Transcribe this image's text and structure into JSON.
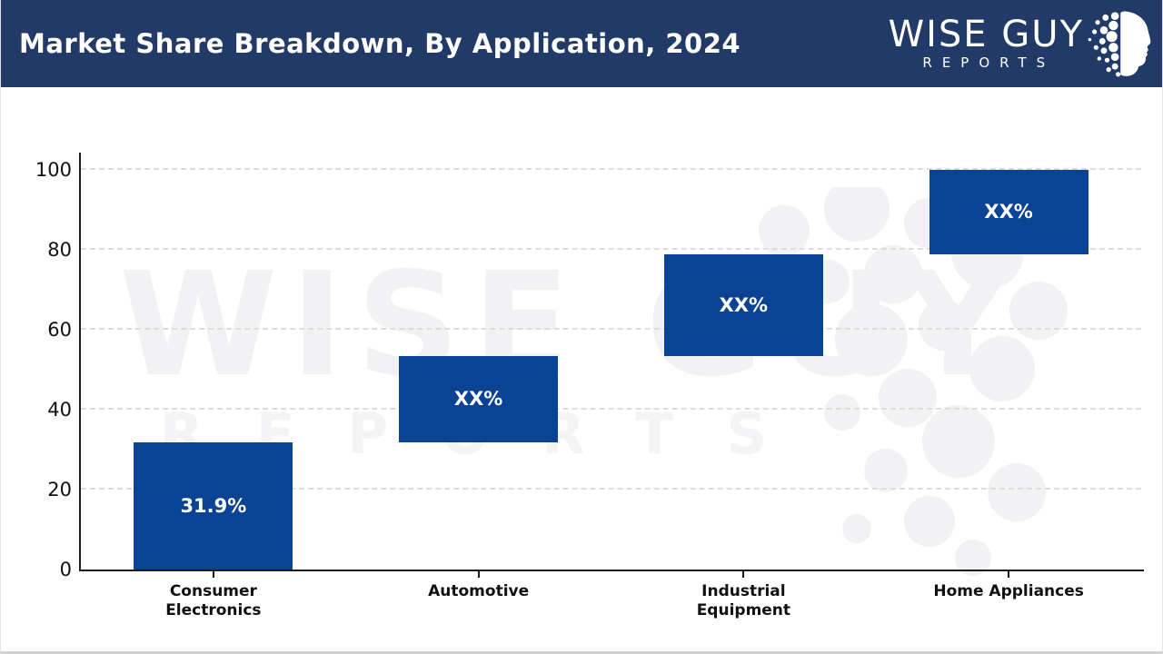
{
  "header": {
    "title": "Market Share Breakdown, By Application, 2024",
    "logo": {
      "line1": "WISE GUY",
      "line2": "REPORTS",
      "icon": "dotted-head-profile-icon"
    }
  },
  "watermark": {
    "line1": "WISE GUY",
    "line2": "REPORTS",
    "icon": "dotted-head-profile-watermark"
  },
  "colors": {
    "header_bg": "#223a67",
    "header_text": "#ffffff",
    "bar_fill": "#0a4294",
    "bar_label_text": "#ffffff",
    "gridline": "#dcdcdc",
    "axis": "#1a1a1a",
    "watermark": "#f2f2f4"
  },
  "chart_data": {
    "type": "bar",
    "subtype": "waterfall",
    "title": "Market Share Breakdown, By Application, 2024",
    "xlabel": "",
    "ylabel": "",
    "ylim": [
      0,
      100
    ],
    "yticks": [
      0,
      20,
      40,
      60,
      80,
      100
    ],
    "grid": "horizontal-dashed",
    "legend": "none",
    "bar_width_frac": 0.6,
    "categories": [
      "Consumer\nElectronics",
      "Automotive",
      "Industrial\nEquipment",
      "Home Appliances"
    ],
    "segments": [
      {
        "category": "Consumer Electronics",
        "start": 0,
        "end": 31.9,
        "value": 31.9,
        "label": "31.9%"
      },
      {
        "category": "Automotive",
        "start": 31.9,
        "end": 53.4,
        "value": 21.5,
        "label": "XX%"
      },
      {
        "category": "Industrial Equipment",
        "start": 53.4,
        "end": 78.9,
        "value": 25.5,
        "label": "XX%"
      },
      {
        "category": "Home Appliances",
        "start": 78.9,
        "end": 100,
        "value": 21.1,
        "label": "XX%"
      }
    ]
  }
}
